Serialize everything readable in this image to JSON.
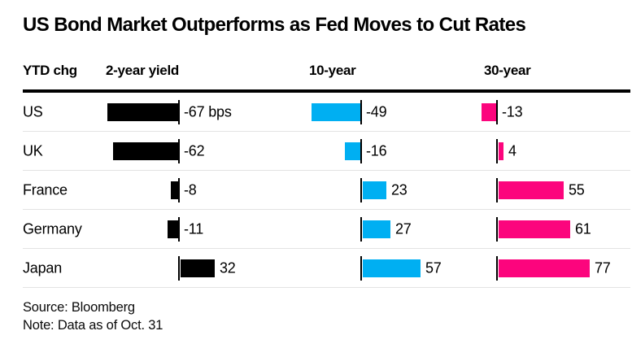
{
  "title": "US Bond Market Outperforms as Fed Moves to Cut Rates",
  "header": {
    "ytd_chg": "YTD chg",
    "col_2_year": "2-year yield",
    "col_10_year": "10-year",
    "col_30_year": "30-year"
  },
  "chart_data": {
    "type": "bar",
    "orientation": "horizontal",
    "title": "US Bond Market Outperforms as Fed Moves to Cut Rates",
    "unit": "bps (YTD change in yield)",
    "grid": "row-separators only, per-column zero baselines",
    "legend_position": "none (column headers act as series labels)",
    "categories": [
      "US",
      "UK",
      "France",
      "Germany",
      "Japan"
    ],
    "series": [
      {
        "key": "2-year",
        "name": "2-year yield",
        "color": "#000000",
        "values": [
          -67,
          -62,
          -8,
          -11,
          32
        ],
        "labels": [
          "-67 bps",
          "-62",
          "-8",
          "-11",
          "32"
        ]
      },
      {
        "key": "10-year",
        "name": "10-year",
        "color": "#00aff2",
        "values": [
          -49,
          -16,
          23,
          27,
          57
        ],
        "labels": [
          "-49",
          "-16",
          "23",
          "27",
          "57"
        ]
      },
      {
        "key": "30-year",
        "name": "30-year",
        "color": "#fc057d",
        "values": [
          -13,
          4,
          55,
          61,
          77
        ],
        "labels": [
          "-13",
          "4",
          "55",
          "61",
          "77"
        ]
      }
    ]
  },
  "footer": {
    "source": "Source: Bloomberg",
    "note": "Note: Data as of Oct. 31"
  },
  "colors": {
    "bar_2_year": "#000000",
    "bar_10_year": "#00aff2",
    "bar_30_year": "#fc057d",
    "row_separator": "#e3e3e3",
    "header_rule": "#000000",
    "text": "#000000"
  }
}
